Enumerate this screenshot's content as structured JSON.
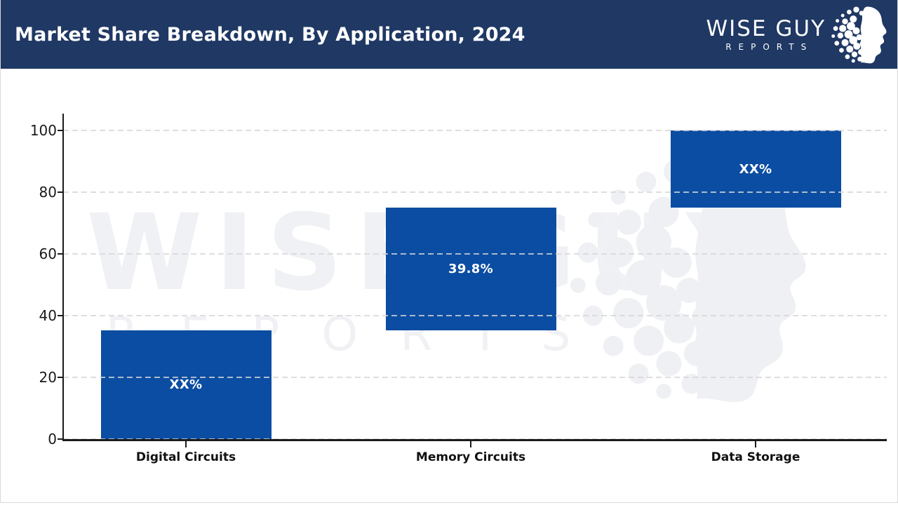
{
  "header": {
    "title": "Market Share Breakdown, By Application, 2024",
    "bg_color": "#1f3864",
    "logo": {
      "line1": "WISE GUY",
      "line2": "REPORTS"
    }
  },
  "watermark": {
    "line1": "WISE GUY",
    "line2": "REPORTS"
  },
  "chart_data": {
    "type": "bar",
    "subtype": "floating-segment-waterfall",
    "title": "Market Share Breakdown, By Application, 2024",
    "categories": [
      "Digital Circuits",
      "Memory Circuits",
      "Data Storage"
    ],
    "segments": [
      {
        "category": "Digital Circuits",
        "start": 0,
        "end": 35.2,
        "label": "XX%"
      },
      {
        "category": "Memory Circuits",
        "start": 35.2,
        "end": 75.0,
        "label": "39.8%"
      },
      {
        "category": "Data Storage",
        "start": 75.0,
        "end": 100,
        "label": "XX%"
      }
    ],
    "xlabel": "",
    "ylabel": "",
    "ylim": [
      0,
      105
    ],
    "yticks": [
      0,
      20,
      40,
      60,
      80,
      100
    ],
    "grid": "horizontal-dashed",
    "legend": "none",
    "bar_color": "#0b4da2",
    "bar_label_color": "#ffffff",
    "axis_color": "#1a1a1a",
    "grid_color": "#d9d9d9"
  }
}
